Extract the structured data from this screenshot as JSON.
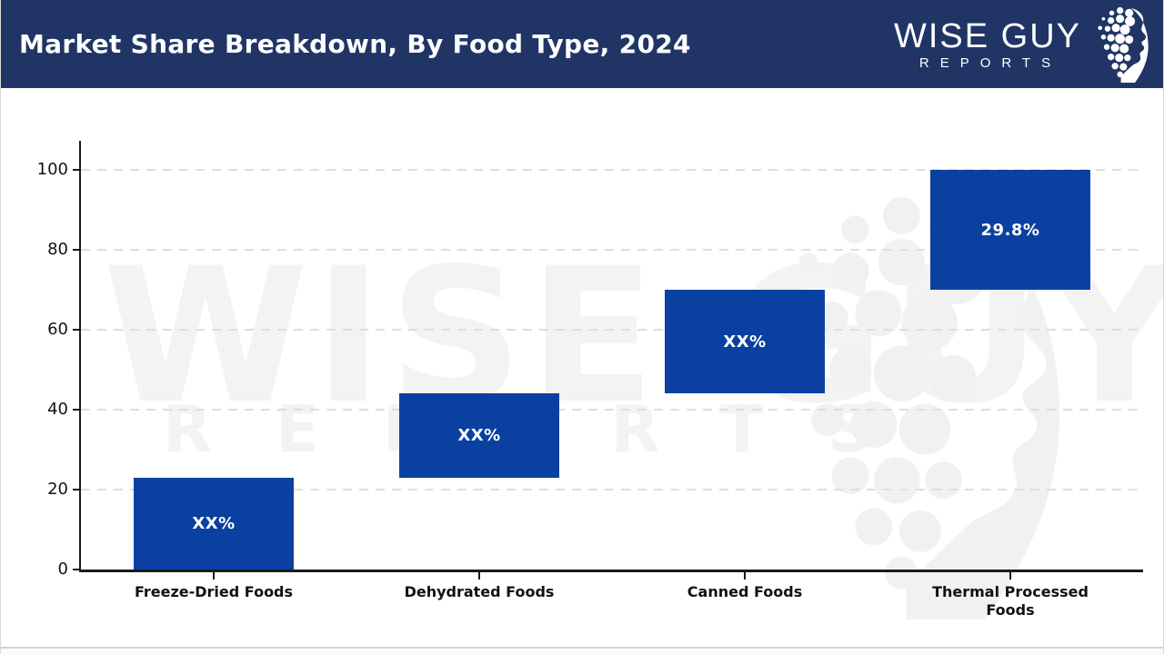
{
  "header": {
    "title": "Market Share Breakdown, By Food Type, 2024",
    "background": "#203566",
    "logo": {
      "line1": "WISE GUY",
      "line2": "REPORTS"
    }
  },
  "watermark": {
    "line1": "WISE GUY",
    "line2": "REPORTS"
  },
  "chart_data": {
    "type": "bar",
    "subtype": "waterfall",
    "title": "Market Share Breakdown, By Food Type, 2024",
    "categories": [
      "Freeze-Dried Foods",
      "Dehydrated Foods",
      "Canned Foods",
      "Thermal Processed Foods"
    ],
    "bars": [
      {
        "category": "Freeze-Dried Foods",
        "start": 0,
        "end": 23,
        "label": "XX%"
      },
      {
        "category": "Dehydrated Foods",
        "start": 23,
        "end": 44,
        "label": "XX%"
      },
      {
        "category": "Canned Foods",
        "start": 44,
        "end": 70,
        "label": "XX%"
      },
      {
        "category": "Thermal Processed Foods",
        "start": 70,
        "end": 100,
        "label": "29.8%"
      }
    ],
    "ylim": [
      0,
      100
    ],
    "yticks": [
      0,
      20,
      40,
      60,
      80,
      100
    ],
    "bar_color": "#0a41a0",
    "axis_color": "#1a1a1a",
    "grid": "dashed-horizontal",
    "legend": "none"
  }
}
